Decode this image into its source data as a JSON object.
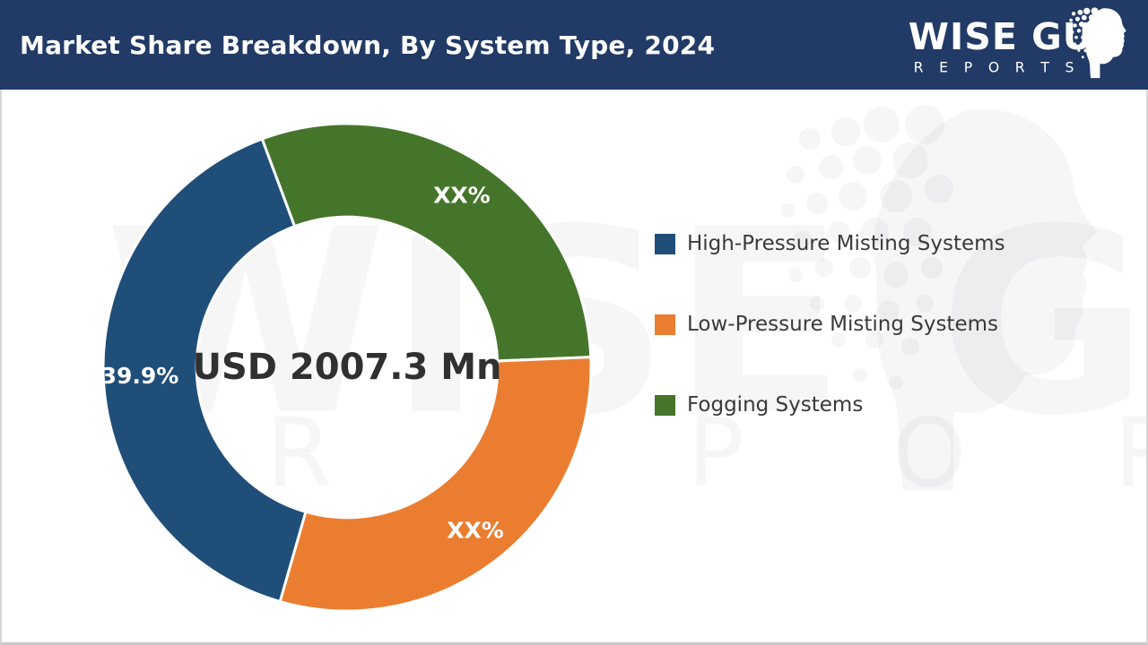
{
  "header": {
    "title": "Market Share Breakdown, By System Type, 2024",
    "logo_line1": "WISE GUY",
    "logo_line2": "R E P O R T S"
  },
  "watermark": {
    "line1": "WISE GUY",
    "line2": "REPORTS"
  },
  "colors": {
    "header_bg": "#213A66",
    "high_pressure_blue": "#1F4E79",
    "low_pressure_orange": "#EB7D30",
    "fogging_green": "#45752B",
    "slice_label_text": "#FFFFFF",
    "center_text": "#303030",
    "legend_text": "#3A3A3A"
  },
  "center_label": "USD 2007.3 Mn",
  "legend": {
    "items": [
      {
        "label": "High-Pressure Misting Systems",
        "color": "#1F4E79"
      },
      {
        "label": "Low-Pressure Misting Systems",
        "color": "#EB7D30"
      },
      {
        "label": "Fogging Systems",
        "color": "#45752B"
      }
    ]
  },
  "chart_data": {
    "type": "pie",
    "subtype": "donut",
    "title": "Market Share Breakdown, By System Type, 2024",
    "center_label": "USD 2007.3 Mn",
    "legend_position": "right",
    "hole_ratio": 0.617,
    "outer_radius_px": 272,
    "label_radius_ratio": 0.85,
    "start_angle_deg": 110.4,
    "direction": "clockwise",
    "slices": [
      {
        "name": "Fogging Systems",
        "display_label": "XX%",
        "value_pct_est": 30.0,
        "color": "#45752B"
      },
      {
        "name": "Low-Pressure Misting Systems",
        "display_label": "XX%",
        "value_pct_est": 30.1,
        "color": "#EB7D30"
      },
      {
        "name": "High-Pressure Misting Systems",
        "display_label": "39.9%",
        "value_pct_est": 39.9,
        "color": "#1F4E79"
      }
    ]
  }
}
